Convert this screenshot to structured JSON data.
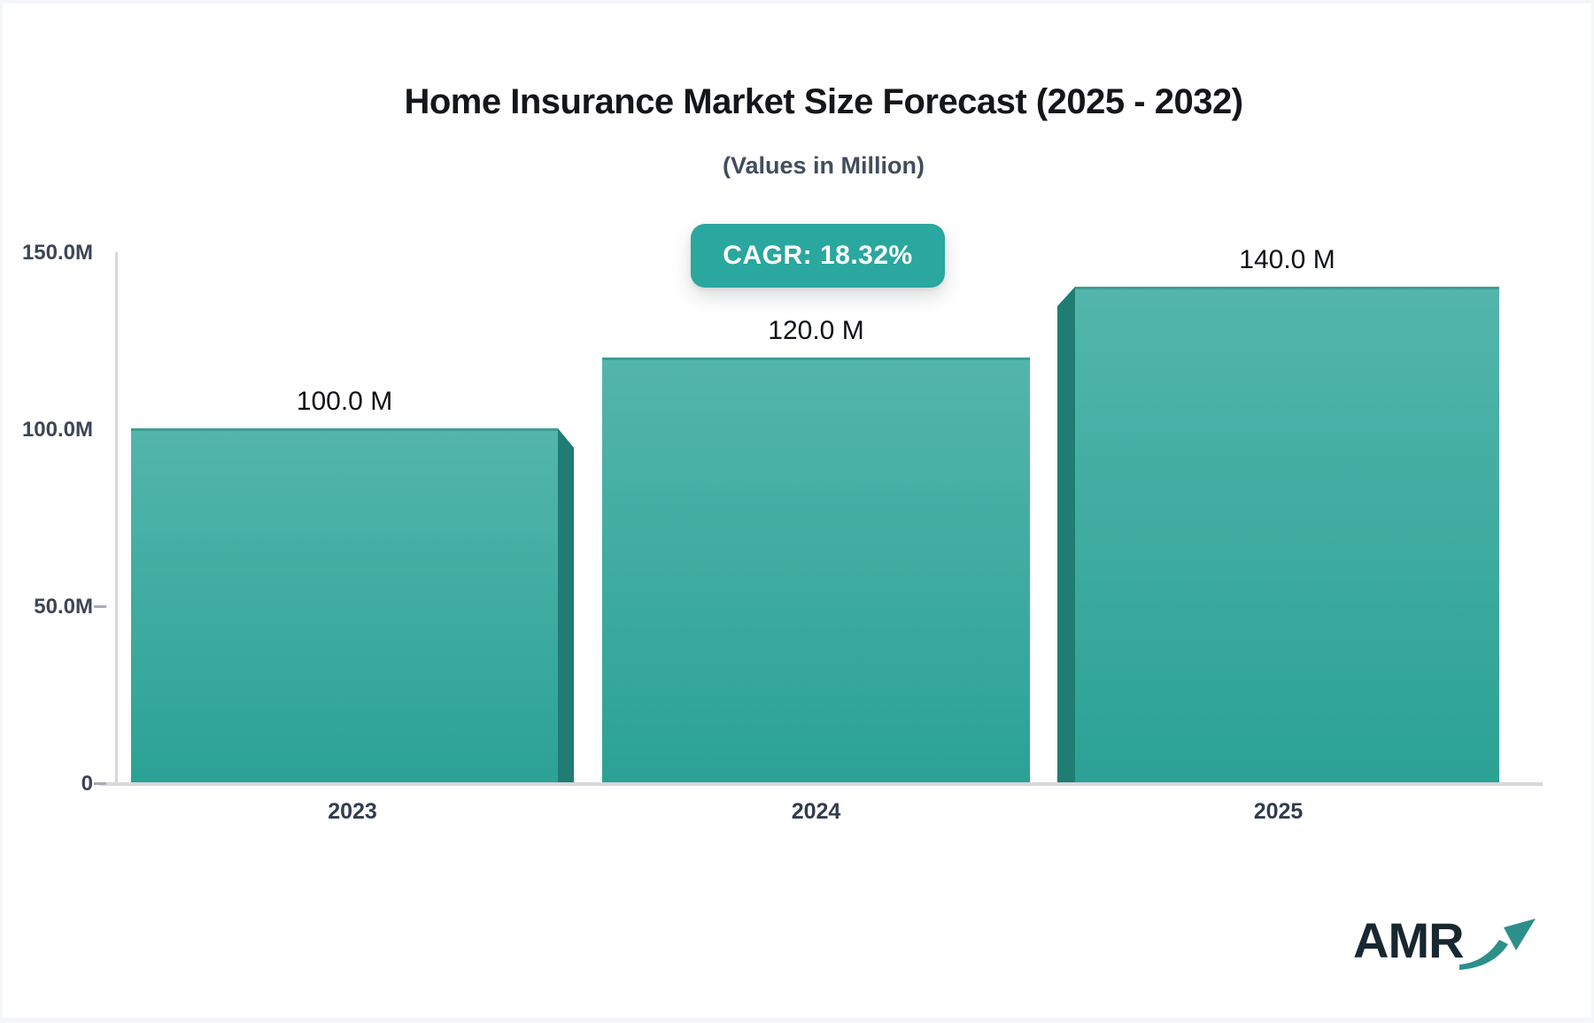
{
  "header": {
    "title": "Home Insurance Market Size Forecast (2025 - 2032)",
    "subtitle": "(Values in Million)"
  },
  "badge": {
    "label": "CAGR: 18.32%"
  },
  "chart_data": {
    "type": "bar",
    "title": "Home Insurance Market Size Forecast (2025 - 2032)",
    "subtitle": "(Values in Million)",
    "cagr": "18.32%",
    "categories": [
      "2023",
      "2024",
      "2025"
    ],
    "values": [
      100,
      120,
      140
    ],
    "value_labels": [
      "100.0 M",
      "120.0 M",
      "140.0 M"
    ],
    "unit": "Million",
    "xlabel": "",
    "ylabel": "",
    "ylim": [
      0,
      150
    ],
    "y_ticks": [
      {
        "label": "150.0M",
        "value": 150
      },
      {
        "label": "100.0M",
        "value": 100
      },
      {
        "label": "50.0M",
        "value": 50
      },
      {
        "label": "0",
        "value": 0
      }
    ],
    "grid": false,
    "legend": "none",
    "bar_style": "3d-extruded teal gradient bars"
  },
  "logo": {
    "text": "AMR"
  },
  "colors": {
    "page_bg": "#f5f6f9",
    "card_bg": "#ffffff",
    "accent": "#2aa79e",
    "badge_text": "#ffffff",
    "bar_top": "#53b5ac",
    "bar_bottom": "#2ba295",
    "bar_side": "#1f7d73",
    "bar_edge": "#3b9e94",
    "title": "#15161a",
    "subtitle": "#434c5c",
    "axis_label": "#3c4655",
    "value_label": "#0e1116",
    "axis_line": "#d6d8dd",
    "tick": "#a6acb6",
    "logo_text": "#182730",
    "logo_arrow": "#2d8f8a"
  }
}
